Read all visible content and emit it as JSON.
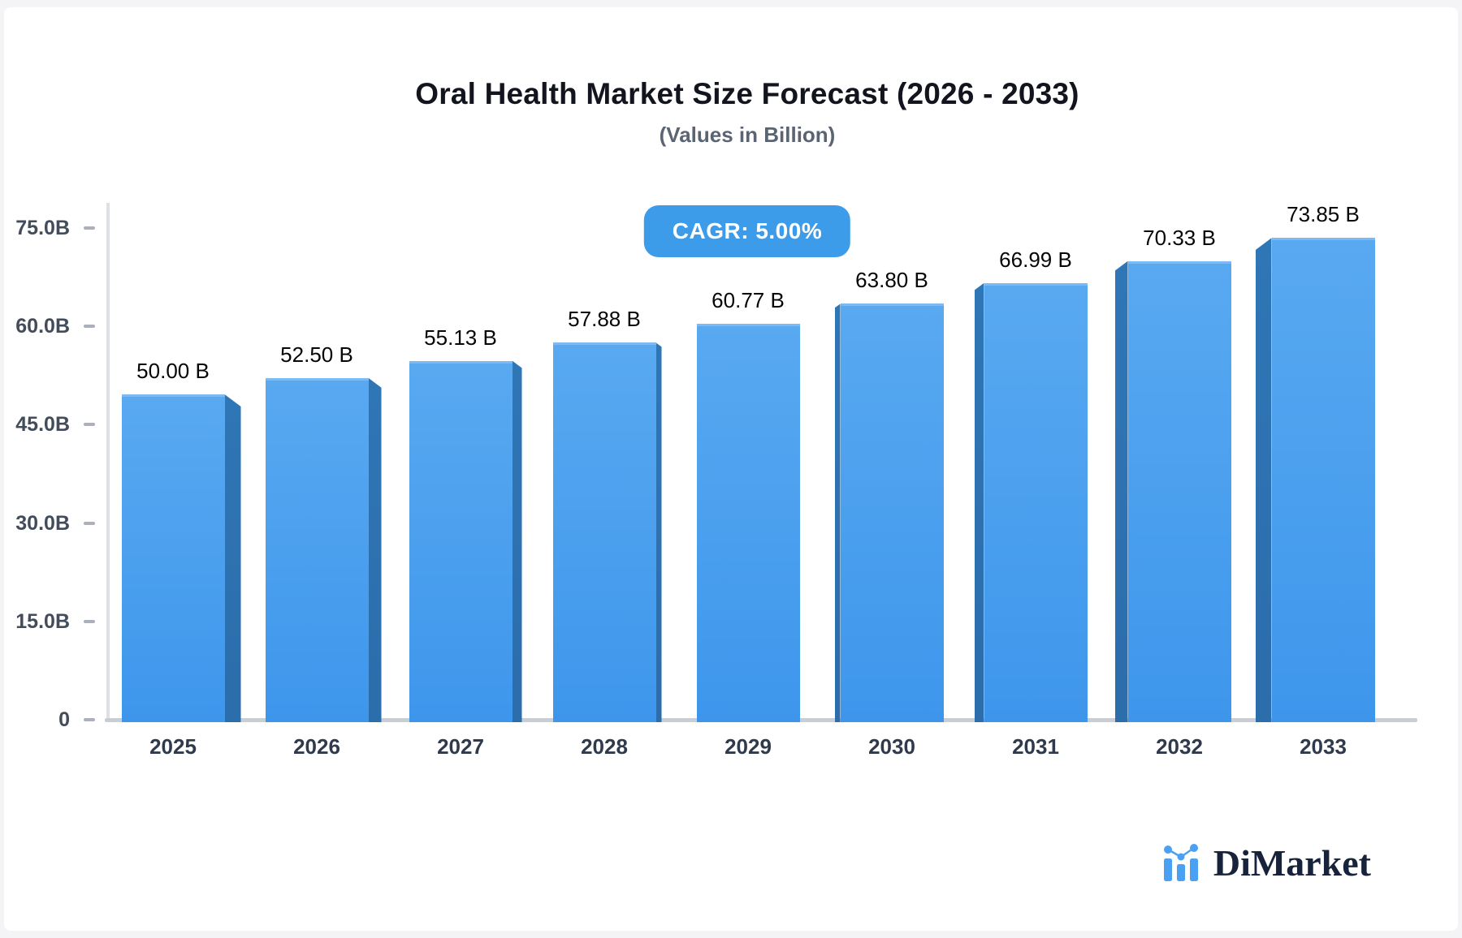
{
  "page": {
    "background_color": "#f4f4f6",
    "card_color": "#ffffff"
  },
  "chart_data": {
    "type": "bar",
    "title": "Oral Health Market Size Forecast (2026 - 2033)",
    "subtitle": "(Values in Billion)",
    "cagr_label": "CAGR: 5.00%",
    "cagr": "5.00%",
    "categories": [
      "2025",
      "2026",
      "2027",
      "2028",
      "2029",
      "2030",
      "2031",
      "2032",
      "2033"
    ],
    "values": [
      50.0,
      52.5,
      55.13,
      57.88,
      60.77,
      63.8,
      66.99,
      70.33,
      73.85
    ],
    "value_labels": [
      "50.00 B",
      "52.50 B",
      "55.13 B",
      "57.88 B",
      "60.77 B",
      "63.80 B",
      "66.99 B",
      "70.33 B",
      "73.85 B"
    ],
    "unit": "Billion",
    "xlabel": "",
    "ylabel": "",
    "ylim": [
      0,
      75
    ],
    "y_ticks": [
      {
        "value": 75,
        "label": "75.0B"
      },
      {
        "value": 60,
        "label": "60.0B"
      },
      {
        "value": 45,
        "label": "45.0B"
      },
      {
        "value": 30,
        "label": "30.0B"
      },
      {
        "value": 15,
        "label": "15.0B"
      },
      {
        "value": 0,
        "label": "0"
      }
    ],
    "grid": false,
    "legend_position": "none",
    "bar_style": {
      "face_top_color": "#58a9f0",
      "face_bottom_color": "#3e96ec",
      "face_highlight_color": "#7bbaf4",
      "side_color": "#2e73b3"
    },
    "badge_color": "#3d9cea",
    "badge_text_color": "#ffffff"
  },
  "branding": {
    "logo_text": "DiMarket",
    "logo_icon": "mini-bar-chart-icon",
    "logo_icon_color": "#4aa0f3",
    "logo_text_color": "#17233b"
  }
}
